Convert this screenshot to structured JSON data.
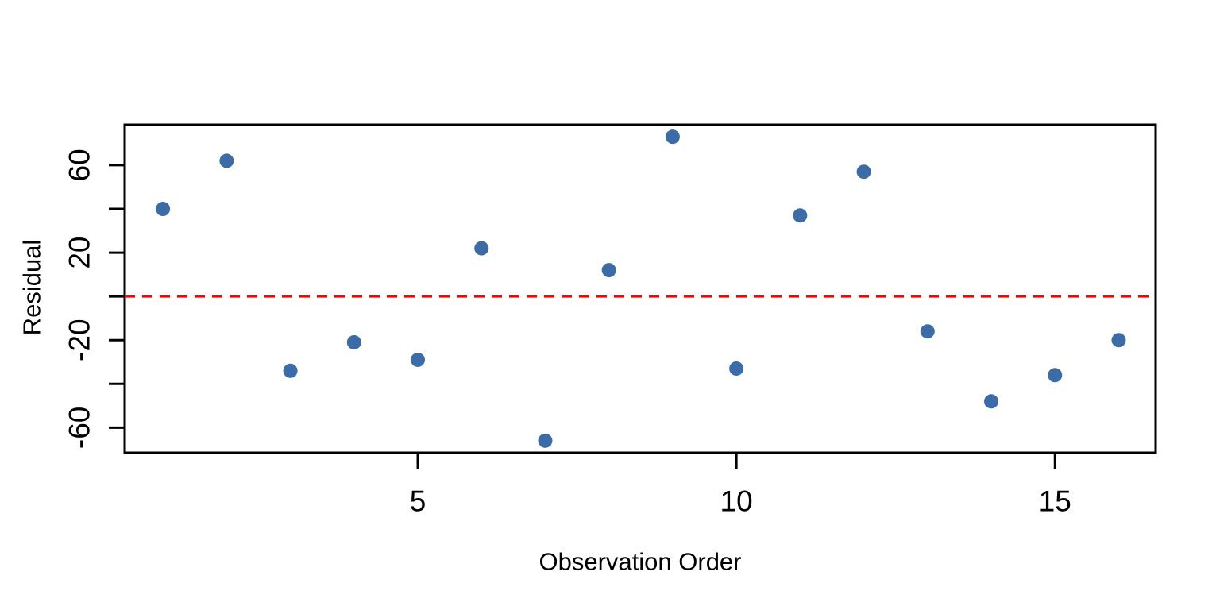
{
  "figure": {
    "background_color": "#ffffff",
    "title": ""
  },
  "chart_data": {
    "type": "scatter",
    "title": "",
    "xlabel": "Observation Order",
    "ylabel": "Residual",
    "x": [
      1,
      2,
      3,
      4,
      5,
      6,
      7,
      8,
      9,
      10,
      11,
      12,
      13,
      14,
      15,
      16
    ],
    "y": [
      40,
      62,
      -34,
      -21,
      -29,
      22,
      -66,
      12,
      73,
      -33,
      37,
      57,
      -16,
      -48,
      -36,
      -20
    ],
    "xlim": [
      0.4,
      16.58
    ],
    "ylim": [
      -71.5,
      78.5
    ],
    "xticks": [
      {
        "value": 5,
        "label": "5"
      },
      {
        "value": 10,
        "label": "10"
      },
      {
        "value": 15,
        "label": "15"
      }
    ],
    "yticks": [
      {
        "value": -60,
        "label": "-60"
      },
      {
        "value": -40,
        "label": ""
      },
      {
        "value": -20,
        "label": "-20"
      },
      {
        "value": 0,
        "label": ""
      },
      {
        "value": 20,
        "label": "20"
      },
      {
        "value": 40,
        "label": ""
      },
      {
        "value": 60,
        "label": "60"
      }
    ],
    "grid": false,
    "legend": null,
    "reference_line": {
      "y": 0,
      "color": "#ff0000",
      "style": "dashed"
    },
    "point_color": "#3b6ca7",
    "axis_color": "#000000"
  }
}
